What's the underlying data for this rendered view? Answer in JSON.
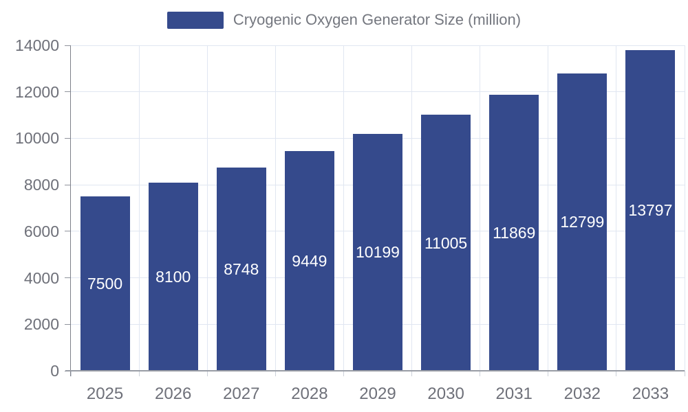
{
  "legend": {
    "label": "Cryogenic Oxygen Generator Size (million)"
  },
  "chart_data": {
    "type": "bar",
    "title": "Cryogenic Oxygen Generator Size (million)",
    "categories": [
      "2025",
      "2026",
      "2027",
      "2028",
      "2029",
      "2030",
      "2031",
      "2032",
      "2033"
    ],
    "series": [
      {
        "name": "Cryogenic Oxygen Generator Size (million)",
        "values": [
          7500,
          8100,
          8748,
          9449,
          10199,
          11005,
          11869,
          12799,
          13797
        ]
      }
    ],
    "xlabel": "",
    "ylabel": "",
    "ylim": [
      0,
      14000
    ],
    "yticks": [
      0,
      2000,
      4000,
      6000,
      8000,
      10000,
      12000,
      14000
    ],
    "grid": true,
    "legend_position": "top",
    "bar_label_position": "inside-middle"
  },
  "colors": {
    "bar": "#354a8c",
    "bar_label": "#ffffff",
    "axis_text": "#6e7079",
    "legend_text": "#74777f",
    "gridline": "#e0e6f1",
    "y_axis_line": "#7d8089",
    "x_axis_line": "#989ca4",
    "x_tick": "#ccd1da",
    "y_tick": "#8f939c",
    "background": "#ffffff"
  }
}
